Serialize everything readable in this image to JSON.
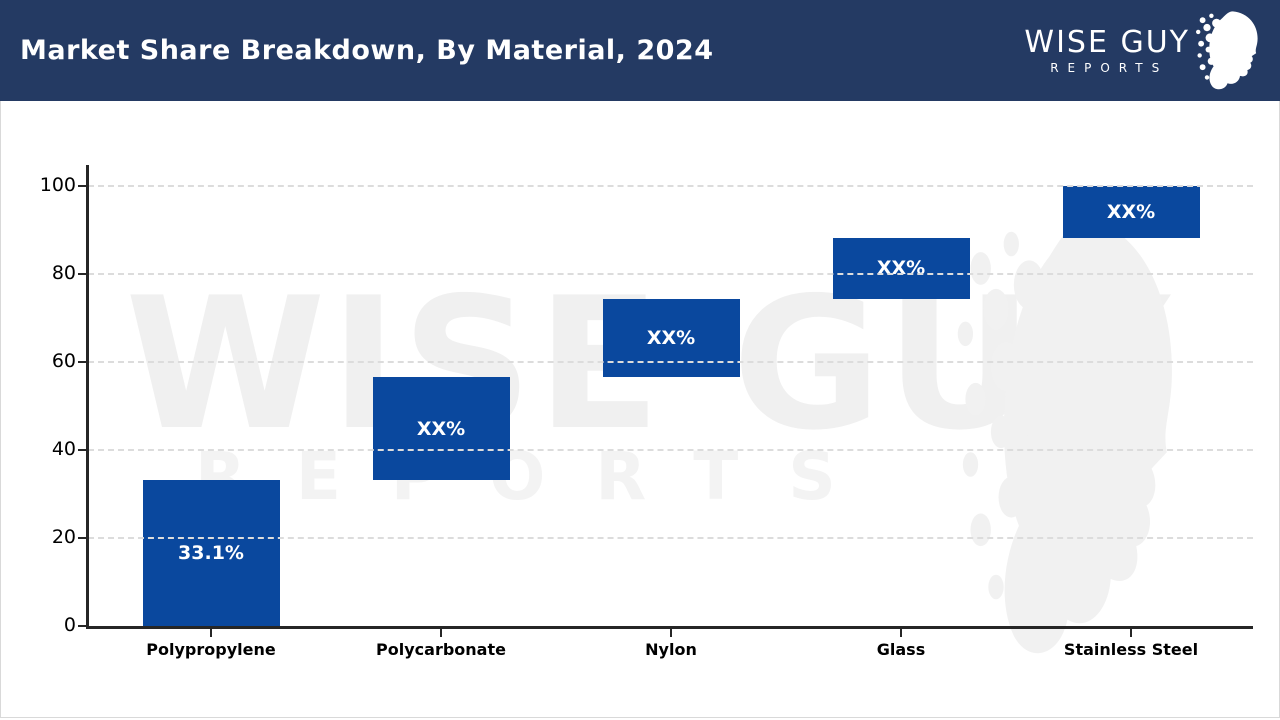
{
  "header": {
    "title": "Market Share Breakdown, By Material, 2024",
    "logo": {
      "line1": "WISE GUY",
      "line2": "REPORTS"
    }
  },
  "watermark": {
    "line1": "WISE GUY",
    "line2": "REPORTS"
  },
  "colors": {
    "header_bg": "#243a63",
    "bar": "#0a489e",
    "bar_label": "#ffffff",
    "gridline": "#dcdcdc",
    "axis": "#262626",
    "watermark": "#f0f0f0"
  },
  "chart_data": {
    "type": "bar",
    "subtype": "waterfall",
    "title": "Market Share Breakdown, By Material, 2024",
    "categories": [
      "Polypropylene",
      "Polycarbonate",
      "Nylon",
      "Glass",
      "Stainless Steel"
    ],
    "segments": [
      {
        "category": "Polypropylene",
        "start": 0,
        "end": 33.1,
        "label": "33.1%"
      },
      {
        "category": "Polycarbonate",
        "start": 33.1,
        "end": 56.6,
        "label": "XX%"
      },
      {
        "category": "Nylon",
        "start": 56.6,
        "end": 74.3,
        "label": "XX%"
      },
      {
        "category": "Glass",
        "start": 74.3,
        "end": 88.2,
        "label": "XX%"
      },
      {
        "category": "Stainless Steel",
        "start": 88.2,
        "end": 100,
        "label": "XX%"
      }
    ],
    "yticks": [
      0,
      20,
      40,
      60,
      80,
      100
    ],
    "ylim": [
      0,
      106
    ],
    "xlabel": "",
    "ylabel": "",
    "grid": "horizontal-dashed-over-bars",
    "legend": "none"
  }
}
